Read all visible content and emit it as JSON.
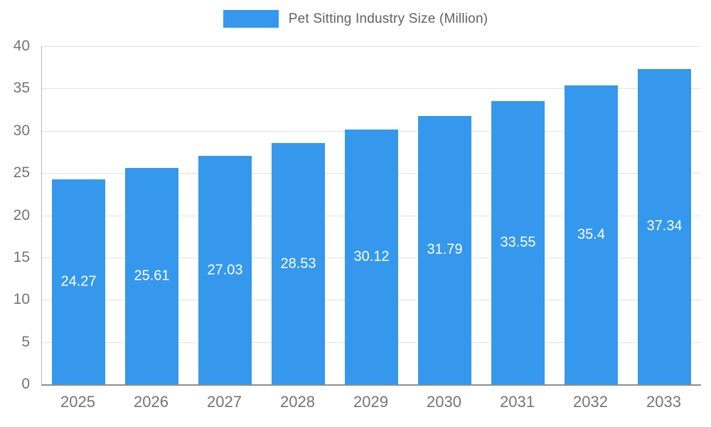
{
  "chart_data": {
    "type": "bar",
    "title": "Pet Sitting Industry Size (Million)",
    "categories": [
      "2025",
      "2026",
      "2027",
      "2028",
      "2029",
      "2030",
      "2031",
      "2032",
      "2033"
    ],
    "values": [
      24.27,
      25.61,
      27.03,
      28.53,
      30.12,
      31.79,
      33.55,
      35.4,
      37.34
    ],
    "value_labels": [
      "24.27",
      "25.61",
      "27.03",
      "28.53",
      "30.12",
      "31.79",
      "33.55",
      "35.4",
      "37.34"
    ],
    "xlabel": "",
    "ylabel": "",
    "ylim": [
      0,
      40
    ],
    "ytick_step": 5,
    "ytick_labels": [
      "0",
      "5",
      "10",
      "15",
      "20",
      "25",
      "30",
      "35",
      "40"
    ],
    "grid": true,
    "legend_position": "top-center",
    "colors": {
      "bar": "#3598ec",
      "bar_label_text": "#ffffff",
      "grid": "#e2e2e2",
      "tick_text": "#757575",
      "legend_text": "#616161",
      "background": "#ffffff"
    }
  }
}
